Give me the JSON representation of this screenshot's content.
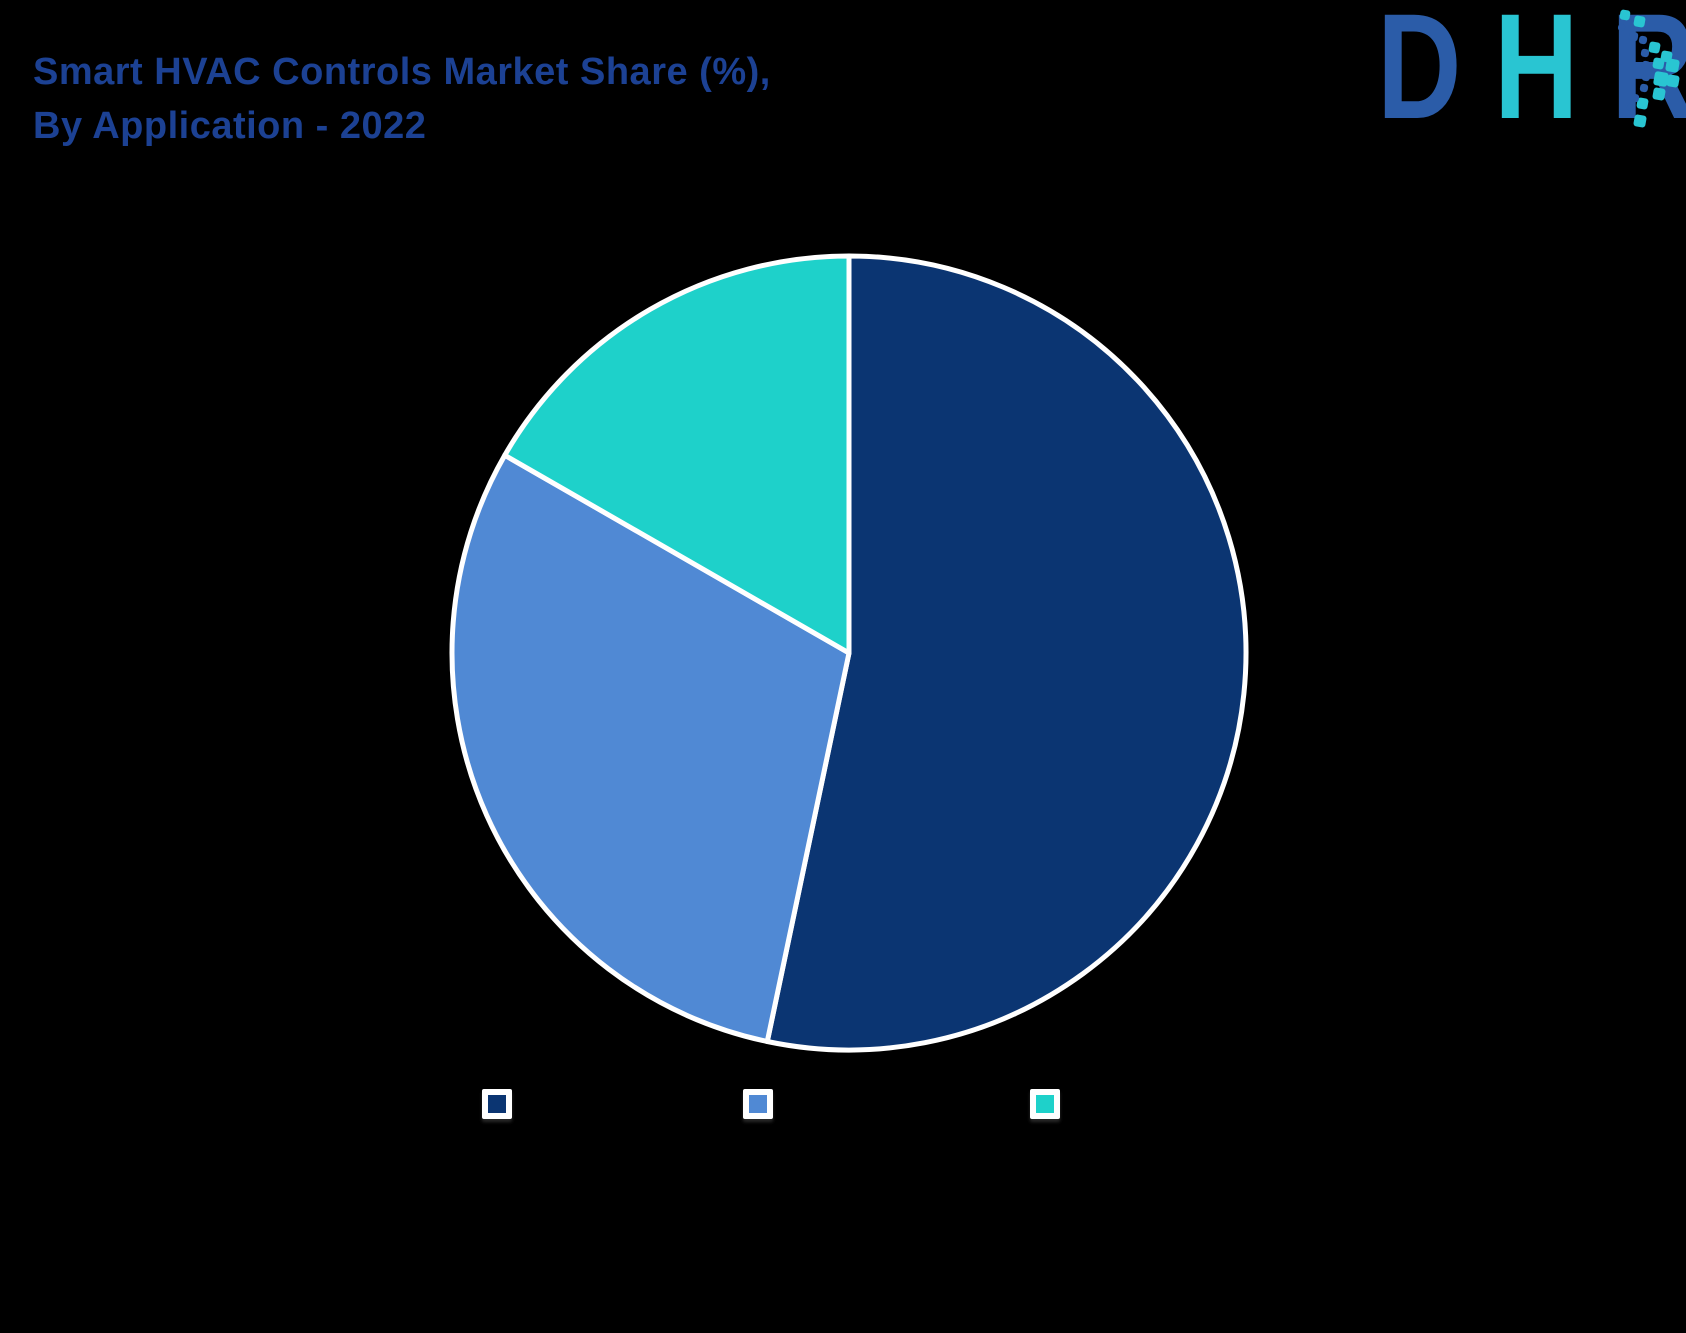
{
  "page": {
    "background_color": "#000000"
  },
  "header": {
    "title_line1": "Smart HVAC Controls Market Share (%),",
    "title_line2": "By Application - 2022",
    "title_color": "#1c4193"
  },
  "logo": {
    "text": "DHR",
    "letters": [
      {
        "char": "D",
        "color": "#2b5ca8"
      },
      {
        "char": "H",
        "color": "#29c5d2"
      },
      {
        "char": "R",
        "color": "#2b5ca8"
      }
    ],
    "accent_blue": "#2b5ca8",
    "accent_teal": "#29c5d2"
  },
  "chart_data": {
    "type": "pie",
    "title": "Smart HVAC Controls Market Share (%), By Application - 2022",
    "unit": "%",
    "start_angle_deg": 0,
    "direction": "clockwise",
    "slice_stroke_color": "#ffffff",
    "legend_position": "bottom",
    "data_labels_visible": false,
    "legend_labels_visible": false,
    "slices": [
      {
        "label": "",
        "value": 53.3,
        "color": "#0b3572"
      },
      {
        "label": "",
        "value": 30.0,
        "color": "#5089d4"
      },
      {
        "label": "",
        "value": 16.7,
        "color": "#1ed1ca"
      }
    ]
  }
}
